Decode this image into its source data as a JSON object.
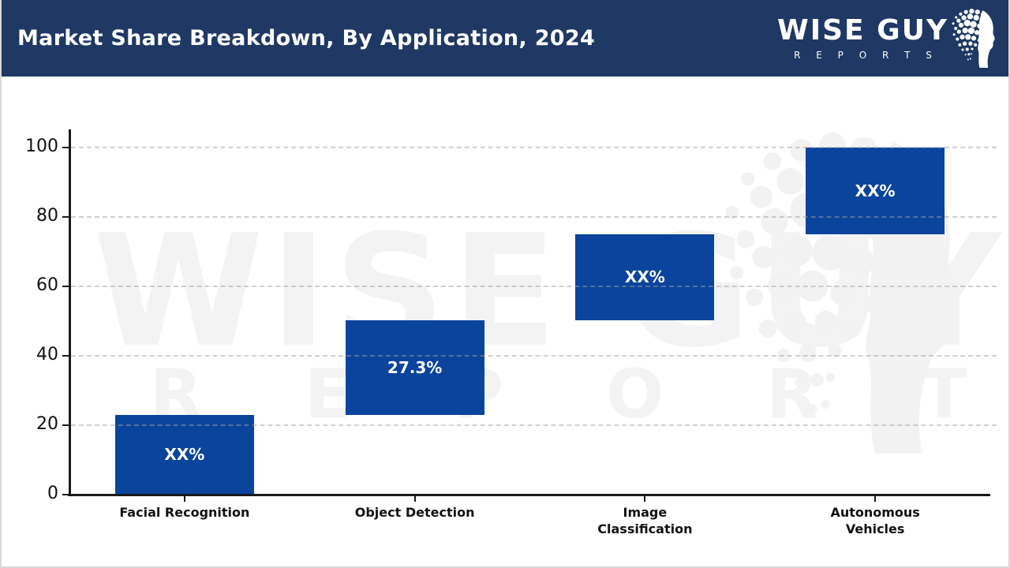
{
  "header": {
    "title": "Market Share Breakdown, By Application, 2024",
    "bg_color": "#1f3864",
    "text_color": "#ffffff",
    "brand": {
      "line1": "WISE GUY",
      "line2": "R E P O R T S"
    }
  },
  "watermark": {
    "line1": "WISE GUY",
    "line2": "R E P O R T S"
  },
  "chart_data": {
    "type": "bar",
    "subtype": "floating-waterfall",
    "title": "Market Share Breakdown, By Application, 2024",
    "categories": [
      "Facial Recognition",
      "Object Detection",
      "Image\nClassification",
      "Autonomous\nVehicles"
    ],
    "segments": [
      {
        "start": 0,
        "end": 23,
        "label": "XX%"
      },
      {
        "start": 23,
        "end": 50.3,
        "label": "27.3%"
      },
      {
        "start": 50.3,
        "end": 75,
        "label": "XX%"
      },
      {
        "start": 75,
        "end": 100,
        "label": "XX%"
      }
    ],
    "ylim": [
      0,
      100
    ],
    "yticks": [
      0,
      20,
      40,
      60,
      80,
      100
    ],
    "grid": "dashed-horizontal",
    "legend": "none",
    "bar_color": "#0a449c",
    "bar_label_color": "#ffffff",
    "axis_color": "#1a1a1a",
    "tick_label_color": "#111111"
  }
}
